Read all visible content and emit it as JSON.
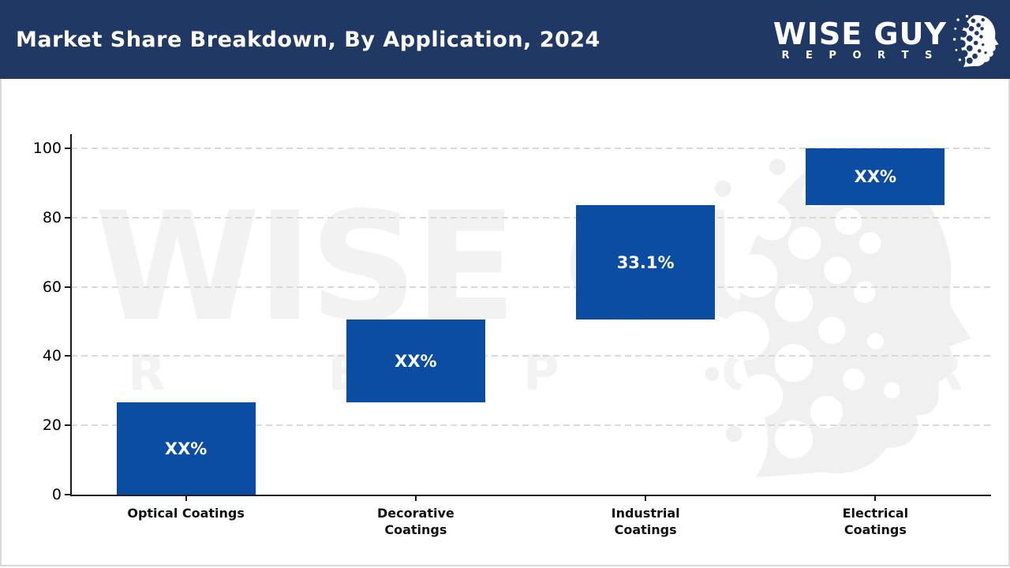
{
  "header": {
    "title": "Market Share Breakdown, By Application, 2024",
    "logo": {
      "line1": "WISE GUY",
      "line2": "R E P O R T S"
    }
  },
  "watermark": {
    "line1": "WISE GUY",
    "line2": "R E P O R T S"
  },
  "chart_data": {
    "type": "bar",
    "subtype": "floating-waterfall",
    "title": "Market Share Breakdown, By Application, 2024",
    "categories": [
      "Optical Coatings",
      "Decorative\nCoatings",
      "Industrial\nCoatings",
      "Electrical\nCoatings"
    ],
    "series": [
      {
        "name": "Market share (%)",
        "segments": [
          {
            "category": "Optical Coatings",
            "start": 0,
            "end": 26.6,
            "label": "XX%"
          },
          {
            "category": "Decorative Coatings",
            "start": 26.6,
            "end": 50.5,
            "label": "XX%"
          },
          {
            "category": "Industrial Coatings",
            "start": 50.5,
            "end": 83.6,
            "label": "33.1%"
          },
          {
            "category": "Electrical Coatings",
            "start": 83.6,
            "end": 100,
            "label": "XX%"
          }
        ]
      }
    ],
    "ylim": [
      0,
      100
    ],
    "yticks": [
      0,
      20,
      40,
      60,
      80,
      100
    ],
    "grid": "horizontal-dashed",
    "legend": "none",
    "colors": {
      "bar": "#0B4DA2",
      "bar_label": "#FFFFFF",
      "grid": "#D9D9D9",
      "axis": "#1A1A1A",
      "header_bg": "#1F3864",
      "watermark": "#F2F2F2"
    }
  }
}
